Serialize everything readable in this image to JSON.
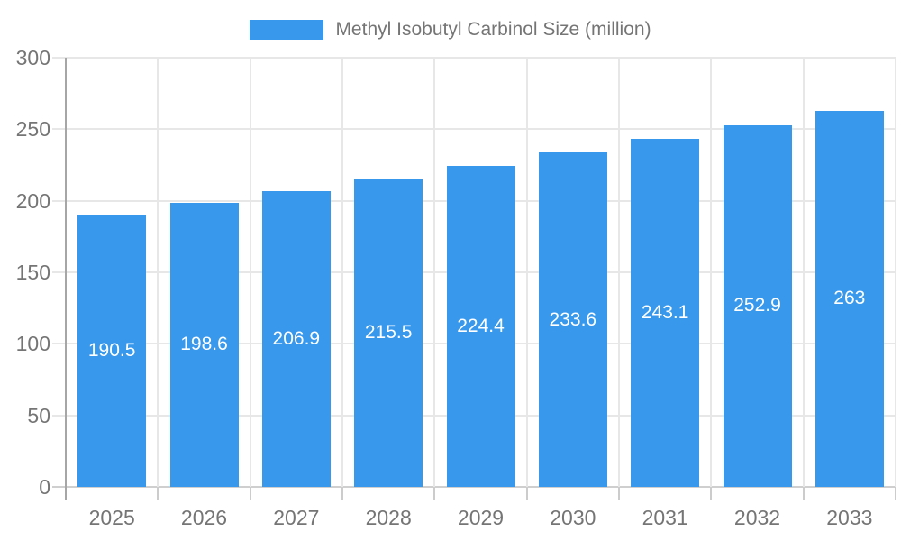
{
  "legend": {
    "label": "Methyl Isobutyl Carbinol Size (million)"
  },
  "chart_data": {
    "type": "bar",
    "title": "",
    "legend": "Methyl Isobutyl Carbinol Size (million)",
    "legend_position": "top-center",
    "categories": [
      "2025",
      "2026",
      "2027",
      "2028",
      "2029",
      "2030",
      "2031",
      "2032",
      "2033"
    ],
    "values": [
      190.5,
      198.6,
      206.9,
      215.5,
      224.4,
      233.6,
      243.1,
      252.9,
      263
    ],
    "bar_labels": [
      "190.5",
      "198.6",
      "206.9",
      "215.5",
      "224.4",
      "233.6",
      "243.1",
      "252.9",
      "263"
    ],
    "xlabel": "",
    "ylabel": "",
    "ylim": [
      0,
      300
    ],
    "yticks": [
      0,
      50,
      100,
      150,
      200,
      250,
      300
    ],
    "grid": true,
    "colors": {
      "bar": "#3898EC",
      "bar_label": "#FFFFFF",
      "grid": "#E7E7E7",
      "zero_line": "#CFCFCF",
      "axis_line": "#A6A6A6",
      "tick": "#CCCCCC",
      "text": "#757575"
    }
  }
}
